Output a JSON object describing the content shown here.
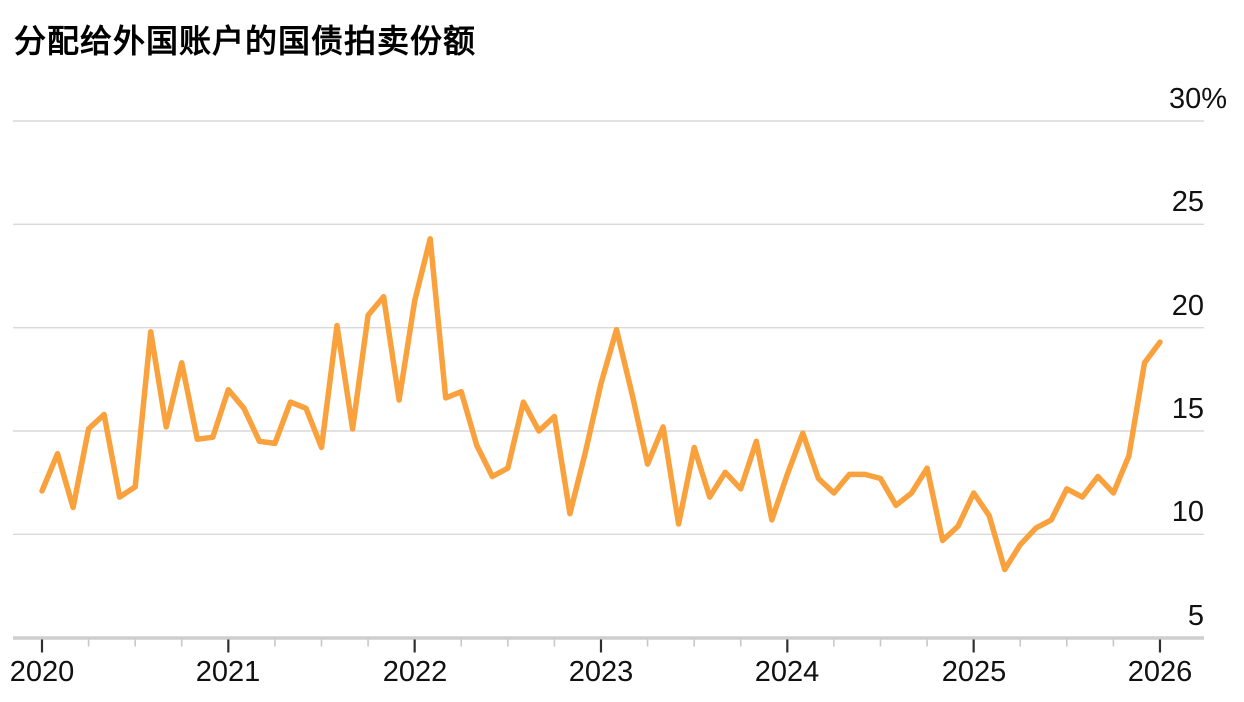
{
  "title": "分配给外国账户的国债拍卖份额",
  "y_axis": {
    "labels": [
      "30%",
      "25",
      "20",
      "15",
      "10",
      "5"
    ],
    "tick_values": [
      30,
      25,
      20,
      15,
      10,
      5
    ]
  },
  "x_axis": {
    "labels": [
      "2020",
      "2021",
      "2022",
      "2023",
      "2024",
      "2025",
      "2026"
    ],
    "minor_ticks_per_year": 4
  },
  "colors": {
    "line": "#F9A13C",
    "gridline": "#d9d9d9",
    "axis_baseline": "#cecece",
    "major_tick": "#2f2f2f",
    "minor_tick": "#c8c8c8",
    "label_text": "#111111",
    "title_text": "#000000",
    "background": "#ffffff"
  },
  "chart_data": {
    "type": "line",
    "title": "分配给外国账户的国债拍卖份额",
    "ylabel": "",
    "xlabel": "",
    "unit": "%",
    "frequency": "monthly",
    "start_year": 2020,
    "start_month": 1,
    "ylim": [
      5,
      30
    ],
    "xlim_years": [
      2020,
      2026
    ],
    "grid": "horizontal-only",
    "legend": "none",
    "values": [
      12.1,
      13.9,
      11.3,
      15.1,
      15.8,
      11.8,
      12.3,
      19.8,
      15.2,
      18.3,
      14.6,
      14.7,
      17.0,
      16.1,
      14.5,
      14.4,
      16.4,
      16.1,
      14.2,
      20.1,
      15.1,
      20.6,
      21.5,
      16.5,
      21.3,
      24.3,
      16.6,
      16.9,
      14.3,
      12.8,
      13.2,
      16.4,
      15.0,
      15.7,
      11.0,
      14.0,
      17.3,
      19.9,
      16.8,
      13.4,
      15.2,
      10.5,
      14.2,
      11.8,
      13.0,
      12.2,
      14.5,
      10.7,
      12.9,
      14.9,
      12.7,
      12.0,
      12.9,
      12.9,
      12.7,
      11.4,
      12.0,
      13.2,
      9.7,
      10.4,
      12.0,
      10.9,
      8.3,
      9.5,
      10.3,
      10.7,
      12.2,
      11.8,
      12.8,
      12.0,
      13.8,
      18.3,
      19.3
    ]
  }
}
